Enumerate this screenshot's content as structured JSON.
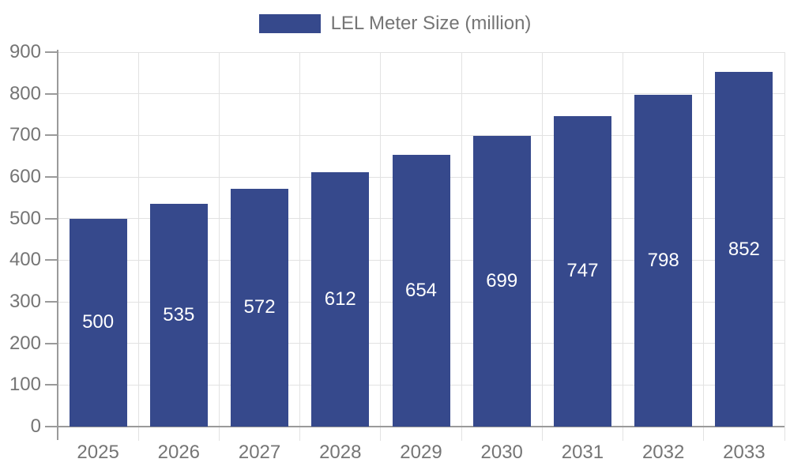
{
  "legend": {
    "label": "LEL Meter Size (million)"
  },
  "chart_data": {
    "type": "bar",
    "title": "LEL Meter Size (million)",
    "series_name": "LEL Meter Size (million)",
    "categories": [
      "2025",
      "2026",
      "2027",
      "2028",
      "2029",
      "2030",
      "2031",
      "2032",
      "2033"
    ],
    "values": [
      500,
      535,
      572,
      612,
      654,
      699,
      747,
      798,
      852
    ],
    "value_labels": [
      "500",
      "535",
      "572",
      "612",
      "654",
      "699",
      "747",
      "798",
      "852"
    ],
    "xlabel": "",
    "ylabel": "",
    "ylim": [
      0,
      900
    ],
    "ytick_step": 100,
    "yticks": [
      "0",
      "100",
      "200",
      "300",
      "400",
      "500",
      "600",
      "700",
      "800",
      "900"
    ],
    "grid": true,
    "legend_position": "top",
    "colors": {
      "bar": "#36498C",
      "grid_line": "#E2E2E2",
      "axis_line": "#9A9A9A",
      "axis_text": "#757575",
      "value_label": "#FFFFFF",
      "background": "#FFFFFF"
    }
  }
}
